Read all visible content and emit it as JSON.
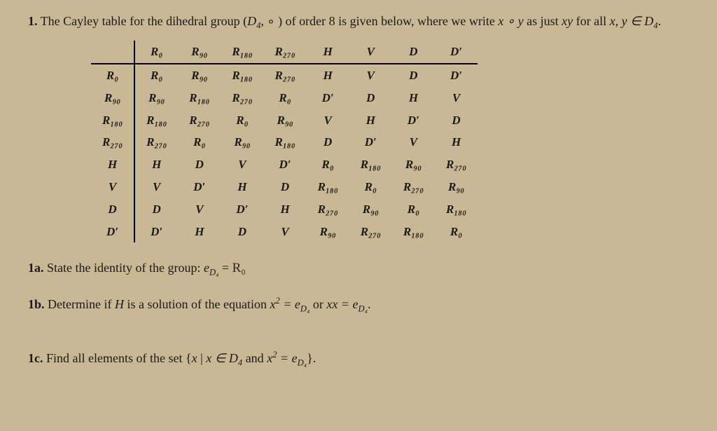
{
  "problem": {
    "number": "1.",
    "text_part1": "The Cayley table for the dihedral group (",
    "group_symbol": "D",
    "group_sub": "4",
    "op": ", ∘ ) of order 8 is given below, where we write ",
    "xy1": "x ∘ y",
    "as": " as just ",
    "xy2": "xy",
    "forall": " for all ",
    "xy3": "x, y ∈ D",
    "period": "."
  },
  "table": {
    "header": [
      "R₀",
      "R₉₀",
      "R₁₈₀",
      "R₂₇₀",
      "H",
      "V",
      "D",
      "D′"
    ],
    "row_labels": [
      "R₀",
      "R₉₀",
      "R₁₈₀",
      "R₂₇₀",
      "H",
      "V",
      "D",
      "D′"
    ],
    "rows": [
      [
        "R₀",
        "R₉₀",
        "R₁₈₀",
        "R₂₇₀",
        "H",
        "V",
        "D",
        "D′"
      ],
      [
        "R₉₀",
        "R₁₈₀",
        "R₂₇₀",
        "R₀",
        "D′",
        "D",
        "H",
        "V"
      ],
      [
        "R₁₈₀",
        "R₂₇₀",
        "R₀",
        "R₉₀",
        "V",
        "H",
        "D′",
        "D"
      ],
      [
        "R₂₇₀",
        "R₀",
        "R₉₀",
        "R₁₈₀",
        "D",
        "D′",
        "V",
        "H"
      ],
      [
        "H",
        "D",
        "V",
        "D′",
        "R₀",
        "R₁₈₀",
        "R₉₀",
        "R₂₇₀"
      ],
      [
        "V",
        "D′",
        "H",
        "D",
        "R₁₈₀",
        "R₀",
        "R₂₇₀",
        "R₉₀"
      ],
      [
        "D",
        "V",
        "D′",
        "H",
        "R₂₇₀",
        "R₉₀",
        "R₀",
        "R₁₈₀"
      ],
      [
        "D′",
        "H",
        "D",
        "V",
        "R₉₀",
        "R₂₇₀",
        "R₁₈₀",
        "R₀"
      ]
    ]
  },
  "q1a": {
    "label": "1a.",
    "text": "State the identity of the group: ",
    "expr_e": "e",
    "expr_sub": "D₄",
    "eq": " = ",
    "answer": "R₀"
  },
  "q1b": {
    "label": "1b.",
    "text": "Determine if ",
    "H": "H",
    "text2": " is a solution of the equation ",
    "x2": "x",
    "sup2": "2",
    "eq1": " = e",
    "sub1": "D₄",
    "or": " or ",
    "xx": "xx = e",
    "sub2": "D₄",
    "period": "."
  },
  "q1c": {
    "label": "1c.",
    "text": "Find all elements of the set {",
    "x": "x",
    "bar": " | ",
    "xin": "x ∈ D",
    "sub4": "4",
    "and": " and ",
    "x2": "x",
    "sup2": "2",
    "eq": " = e",
    "subD": "D₄",
    "close": "}."
  }
}
